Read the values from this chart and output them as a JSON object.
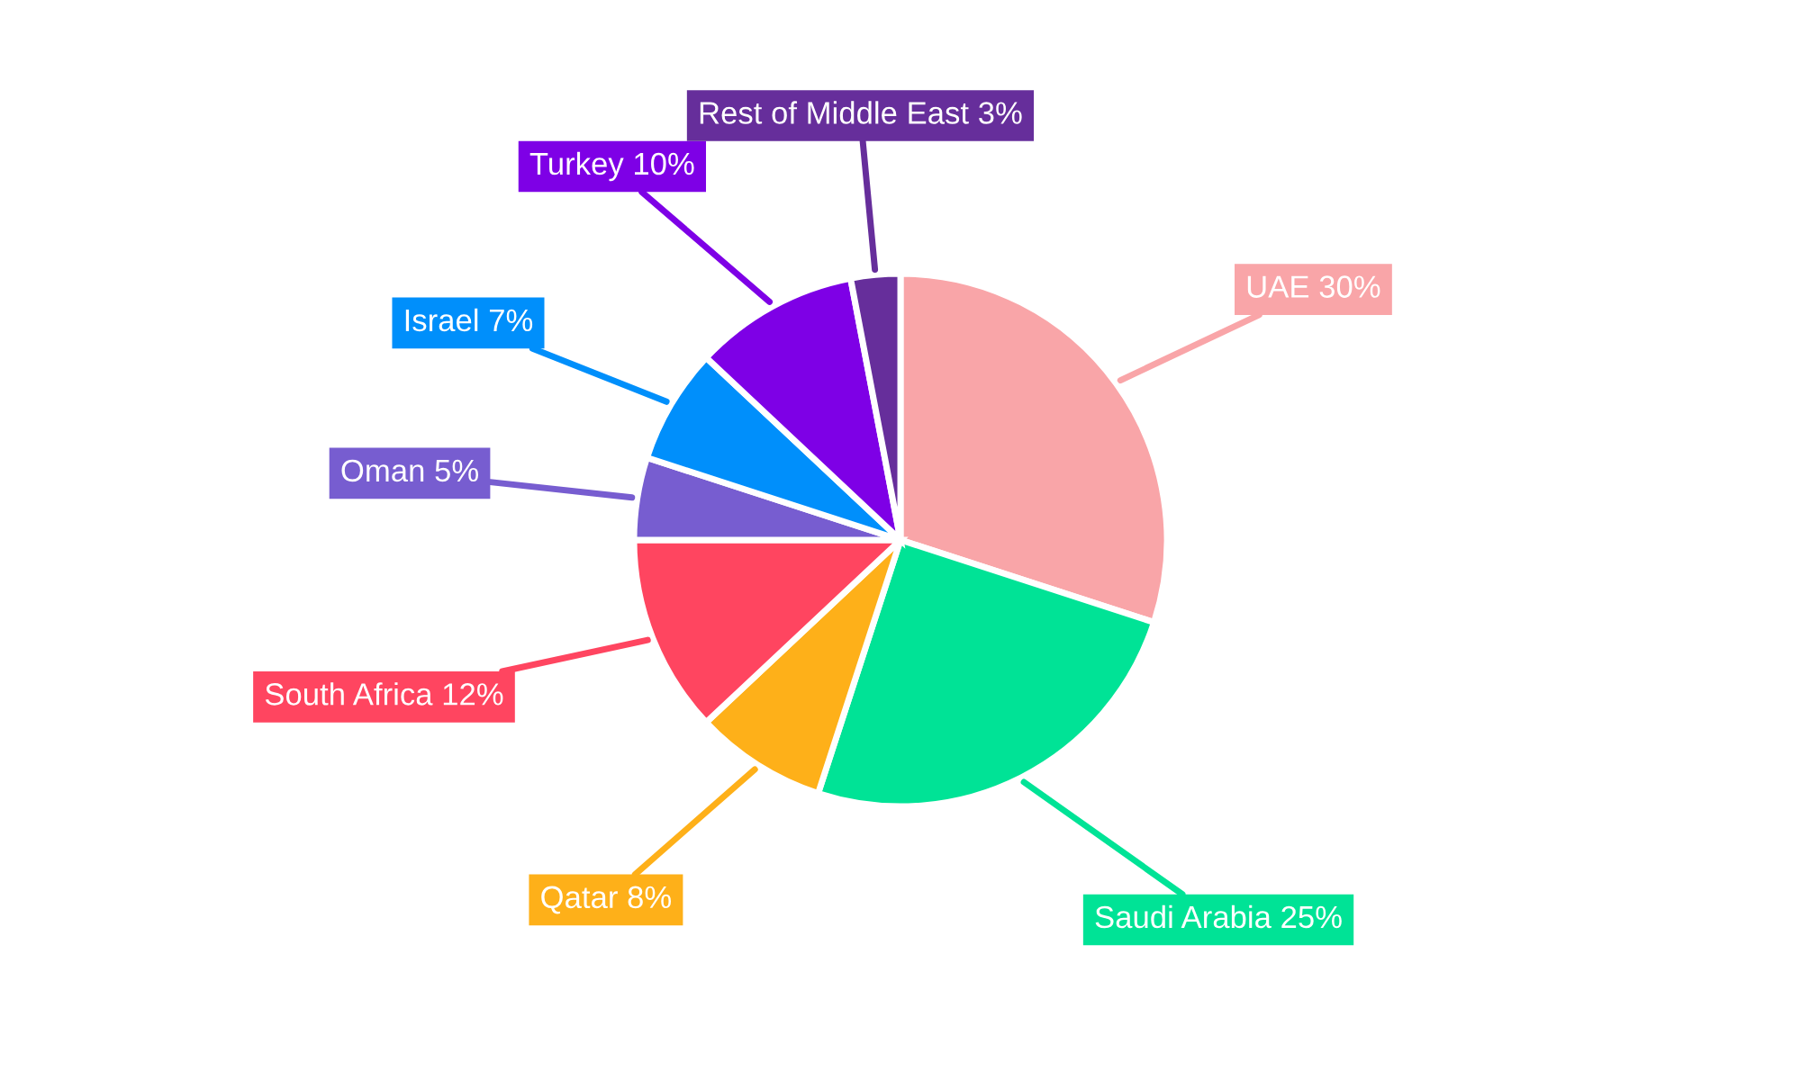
{
  "chart_data": {
    "type": "pie",
    "categories": [
      "UAE",
      "Saudi Arabia",
      "Qatar",
      "South Africa",
      "Oman",
      "Israel",
      "Turkey",
      "Rest of Middle East"
    ],
    "values": [
      30,
      25,
      8,
      12,
      5,
      7,
      10,
      3
    ],
    "colors": [
      "#f9a5a8",
      "#00e396",
      "#feb019",
      "#ff4560",
      "#775dd0",
      "#008ffb",
      "#7e00e6",
      "#662e9b"
    ],
    "value_labels": [
      "30%",
      "25%",
      "8%",
      "12%",
      "5%",
      "7%",
      "10%",
      "3%"
    ],
    "legend": false
  }
}
